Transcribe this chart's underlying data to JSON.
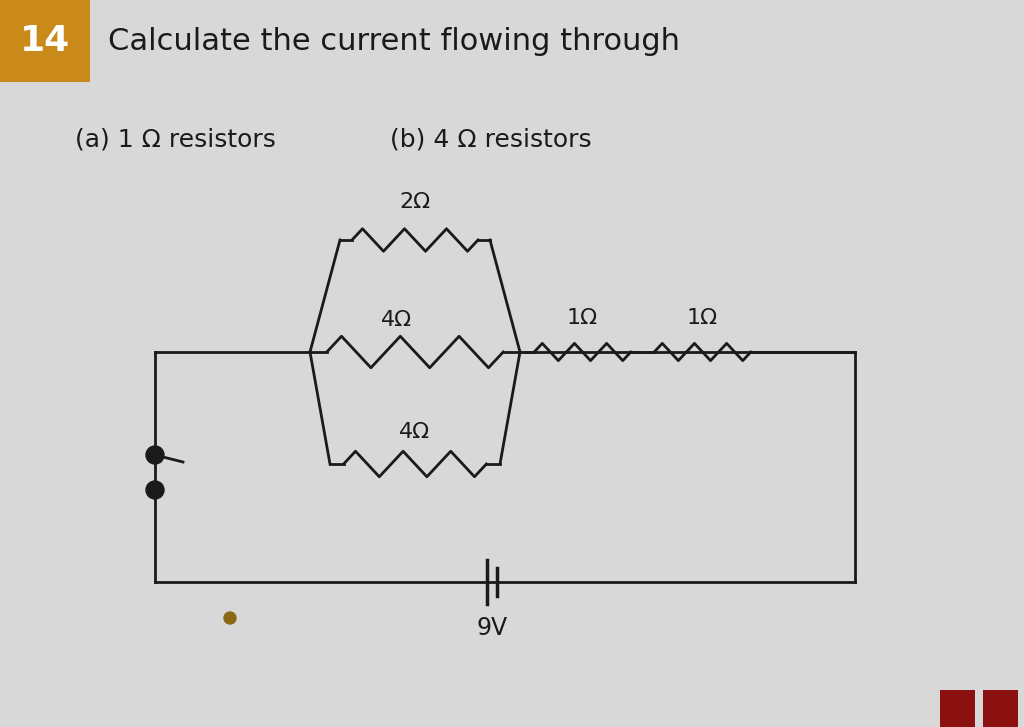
{
  "bg_color": "#d8d8d8",
  "header_color": "#c98a1a",
  "header_text": "14",
  "header_text_color": "#ffffff",
  "title_text": "Calculate the current flowing through",
  "title_color": "#1a1a1a",
  "subtitle_a": "(a) 1 Ω resistors",
  "subtitle_b": "(b) 4 Ω resistors",
  "subtitle_color": "#1a1a1a",
  "circuit_color": "#1a1a1a",
  "label_2ohm": "2Ω",
  "label_4ohm_mid": "4Ω",
  "label_4ohm_bot": "4Ω",
  "label_1ohm_1": "1Ω",
  "label_1ohm_2": "1Ω",
  "label_battery": "9V",
  "line_width": 2.0
}
